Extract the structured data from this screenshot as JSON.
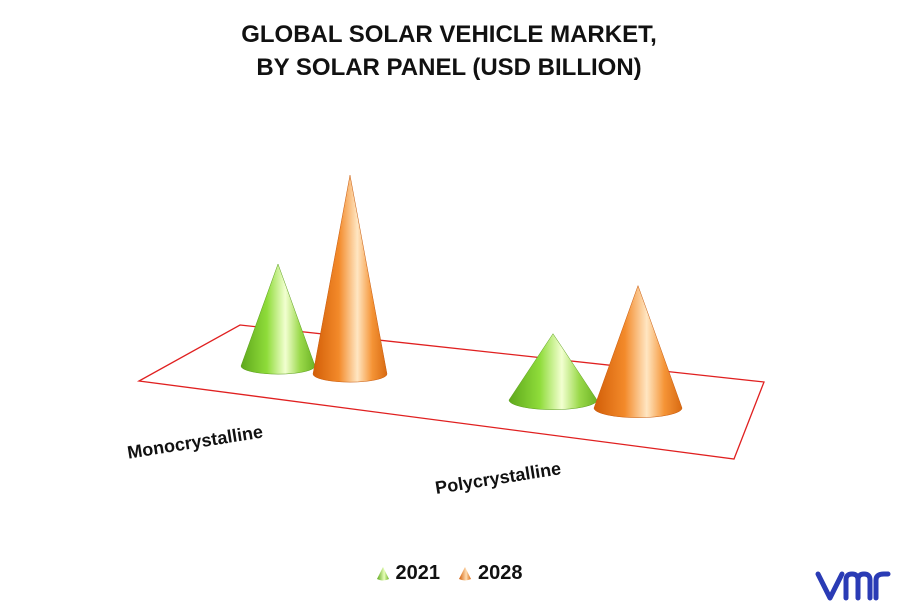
{
  "title": {
    "line1": "GLOBAL SOLAR VEHICLE MARKET,",
    "line2": "BY SOLAR PANEL (USD BILLION)"
  },
  "colors": {
    "series_2021": "#7ccf2a",
    "series_2028": "#f07a1a",
    "floor_outline": "#e02020",
    "logo": "#2a3bb5"
  },
  "chart_data": {
    "type": "bar",
    "mark_shape": "cone",
    "categories": [
      "Monocrystalline",
      "Polycrystalline"
    ],
    "series": [
      {
        "name": "2021",
        "values": [
          1.0,
          0.65
        ]
      },
      {
        "name": "2028",
        "values": [
          1.95,
          1.2
        ]
      }
    ],
    "ylim": [
      0,
      2.2
    ],
    "grid": false,
    "legend_position": "bottom"
  },
  "legend": [
    {
      "label": "2021",
      "icon": "cone-icon-green"
    },
    {
      "label": "2028",
      "icon": "cone-icon-orange"
    }
  ],
  "logo": {
    "icon": "vmr-logo"
  }
}
